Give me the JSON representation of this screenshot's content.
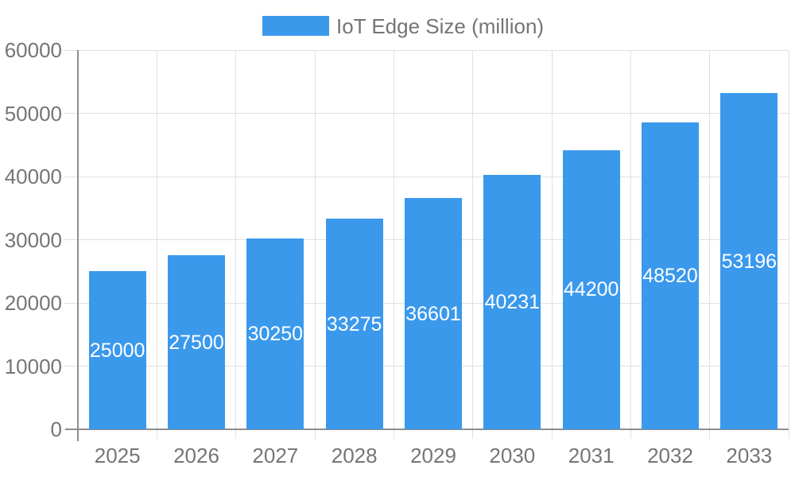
{
  "chart_data": {
    "type": "bar",
    "title": "",
    "series_name": "IoT Edge Size (million)",
    "categories": [
      "2025",
      "2026",
      "2027",
      "2028",
      "2029",
      "2030",
      "2031",
      "2032",
      "2033"
    ],
    "values": [
      25000,
      27500,
      30250,
      33275,
      36601,
      40231,
      44200,
      48520,
      53196
    ],
    "bar_value_labels": [
      "25000",
      "27500",
      "30250",
      "33275",
      "36601",
      "40231",
      "44200",
      "48520",
      "53196"
    ],
    "xlabel": "",
    "ylabel": "",
    "ylim": [
      0,
      60000
    ],
    "y_ticks": [
      0,
      10000,
      20000,
      30000,
      40000,
      50000,
      60000
    ],
    "grid": true,
    "legend_position": "top-center",
    "colors": {
      "bar": "#3B99EC",
      "bar_label_text": "#FFFFFF",
      "axis_text": "#757575",
      "grid_line": "#E0E0E0",
      "axis_line": "#8E8E8E",
      "background": "#FFFFFF"
    }
  }
}
